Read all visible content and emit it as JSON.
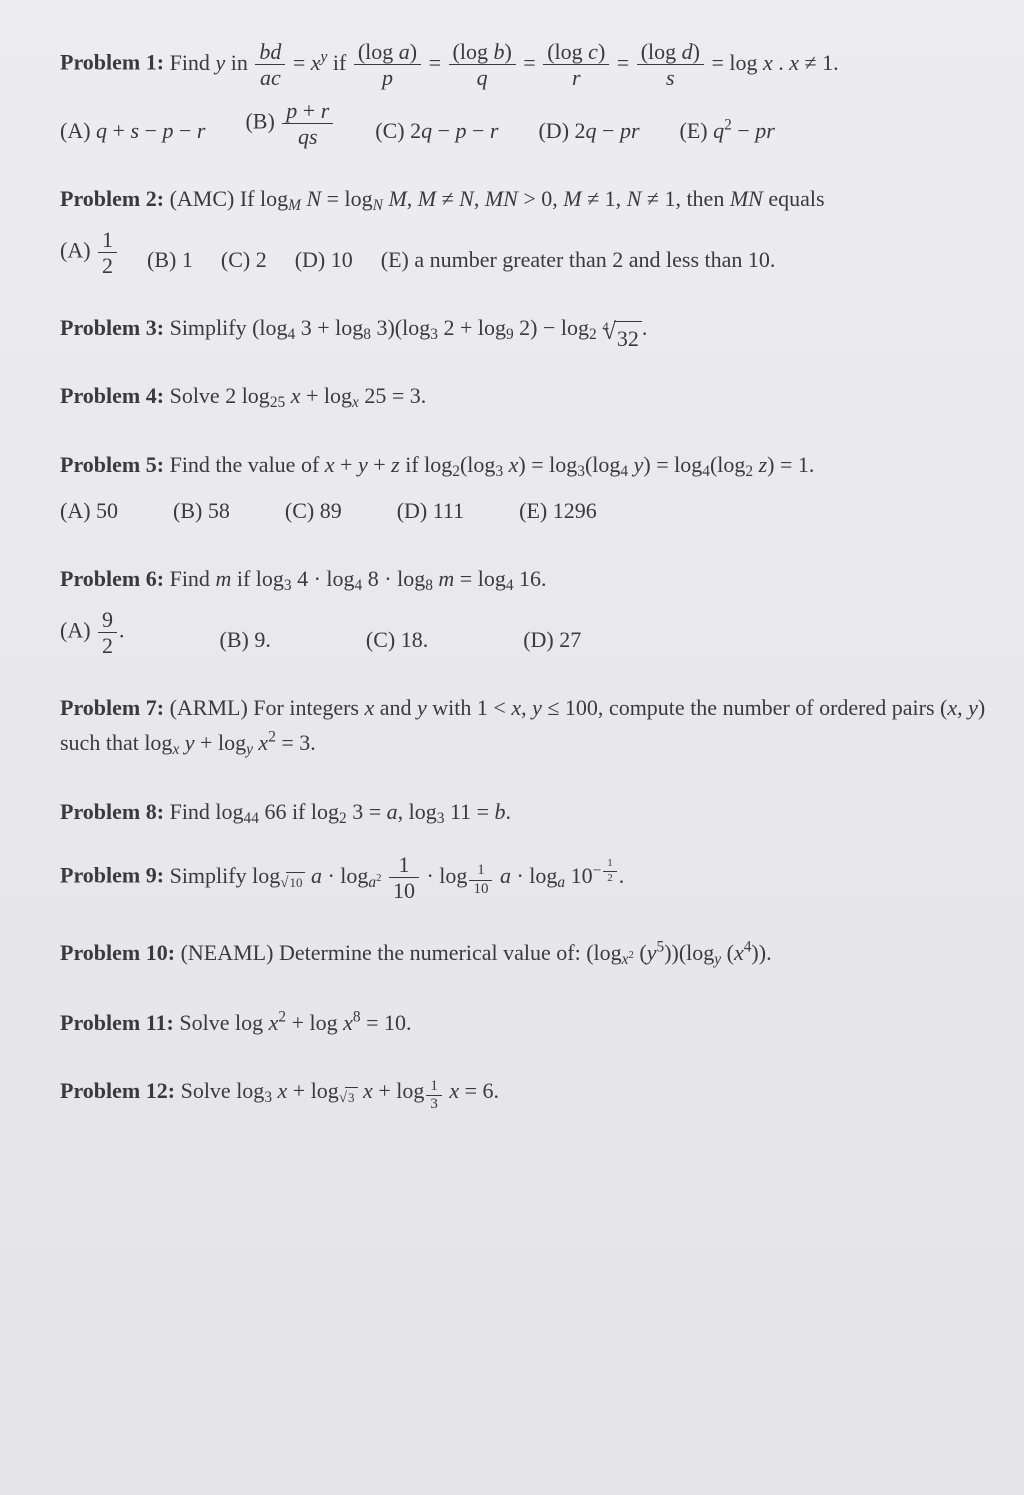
{
  "problems": [
    {
      "label": "Problem 1:",
      "statement_html": "Find <i>y</i> in <span class='frac'><span class='num'><i>bd</i></span><span class='den'><i>ac</i></span></span> = <i>x</i><sup><i>y</i></sup> if <span class='frac'><span class='num'>(log <i>a</i>)</span><span class='den'><i>p</i></span></span> = <span class='frac'><span class='num'>(log <i>b</i>)</span><span class='den'><i>q</i></span></span> = <span class='frac'><span class='num'>(log <i>c</i>)</span><span class='den'><i>r</i></span></span> = <span class='frac'><span class='num'>(log <i>d</i>)</span><span class='den'><i>s</i></span></span> = log <i>x</i> . <i>x</i> ≠ 1.",
      "choices": [
        "(A) <i>q</i> + <i>s</i> − <i>p</i> − <i>r</i>",
        "(B) <span class='frac'><span class='num'><i>p</i> + <i>r</i></span><span class='den'><i>qs</i></span></span>",
        "(C) 2<i>q</i> − <i>p</i> − <i>r</i>",
        "(D) 2<i>q</i> − <i>pr</i>",
        "(E) <i>q</i><sup>2</sup> − <i>pr</i>"
      ]
    },
    {
      "label": "Problem 2:",
      "statement_html": "(AMC) If log<span class='sub2'><i>M</i></span> <i>N</i> = log<span class='sub2'><i>N</i></span> <i>M</i>, <i>M</i> ≠ <i>N</i>, <i>MN</i> &gt; 0, <i>M</i> ≠ 1, <i>N</i> ≠ 1, then <i>MN</i> equals",
      "choices": [
        "(A) <span class='frac'><span class='num'>1</span><span class='den'>2</span></span>",
        "(B) 1",
        "(C) 2",
        "(D) 10",
        "(E) a number greater than 2 and less than 10."
      ]
    },
    {
      "label": "Problem 3:",
      "statement_html": "Simplify (log<span class='sub2'>4</span> 3 + log<span class='sub2'>8</span> 3)(log<span class='sub2'>3</span> 2 + log<span class='sub2'>9</span> 2) − log<span class='sub2'>2</span> <span class='radic'><span class='root-idx'>4</span><span class='surd'>√</span><span class='radicand'>32</span></span>.",
      "choices": []
    },
    {
      "label": "Problem 4:",
      "statement_html": "Solve 2 log<span class='sub2'>25</span> <i>x</i> + log<span class='sub2'><i>x</i></span> 25 = 3.",
      "choices": []
    },
    {
      "label": "Problem 5:",
      "statement_html": "Find the value of <i>x</i> + <i>y</i> + <i>z</i> if log<span class='sub2'>2</span>(log<span class='sub2'>3</span> <i>x</i>) = log<span class='sub2'>3</span>(log<span class='sub2'>4</span> <i>y</i>) = log<span class='sub2'>4</span>(log<span class='sub2'>2</span> <i>z</i>) = 1.",
      "choices": [
        "(A) 50",
        "(B) 58",
        "(C) 89",
        "(D) 111",
        "(E) 1296"
      ]
    },
    {
      "label": "Problem 6:",
      "statement_html": "Find <i>m</i> if log<span class='sub2'>3</span> 4 · log<span class='sub2'>4</span> 8 · log<span class='sub2'>8</span> <i>m</i> = log<span class='sub2'>4</span> 16.",
      "choices": [
        "(A) <span class='frac'><span class='num'>9</span><span class='den'>2</span></span>.",
        "(B) 9.",
        "(C) 18.",
        "(D) 27"
      ]
    },
    {
      "label": "Problem 7:",
      "statement_html": "(ARML) For integers <i>x</i> and <i>y</i> with 1 &lt; <i>x</i>, <i>y</i> ≤ 100, compute the number of ordered pairs (<i>x</i>, <i>y</i>) such that log<span class='sub2'><i>x</i></span> <i>y</i> + log<span class='sub2'><i>y</i></span> <i>x</i><sup>2</sup> = 3.",
      "choices": []
    },
    {
      "label": "Problem 8:",
      "statement_html": "Find log<span class='sub2'>44</span> 66 if log<span class='sub2'>2</span> 3 = <i>a</i>, log<span class='sub2'>3</span> 11 = <i>b</i>.",
      "choices": []
    },
    {
      "label": "Problem 9:",
      "statement_html": "Simplify log<span class='sub2'><span class='radic'><span class='surd' style='font-size:15px'>√</span><span class='radicand' style='border-top-width:1px;font-size:13px;'>10</span></span></span> <i>a</i> · log<span class='sub2'><i>a</i><sup>2</sup></span> <span class='frac'><span class='num'>1</span><span class='den'>10</span></span> · log<span class='sub2'><span class='frac small'><span class='num'>1</span><span class='den'>10</span></span></span> <i>a</i> · log<span class='sub2'><i>a</i></span> 10<sup>−<span class='frac small' style='font-size:11px;'><span class='num'>1</span><span class='den'>2</span></span></sup>.",
      "choices": []
    },
    {
      "label": "Problem 10:",
      "statement_html": "(NEAML) Determine the numerical value of: (log<span class='sub2'><i>x</i><sup>2</sup></span> (<i>y</i><sup>5</sup>))(log<span class='sub2'><i>y</i></span> (<i>x</i><sup>4</sup>)).",
      "choices": []
    },
    {
      "label": "Problem 11:",
      "statement_html": "Solve log <i>x</i><sup>2</sup> + log <i>x</i><sup>8</sup> = 10.",
      "choices": []
    },
    {
      "label": "Problem 12:",
      "statement_html": "Solve log<span class='sub2'>3</span> <i>x</i> + log<span class='sub2'><span class='radic'><span class='surd' style='font-size:15px'>√</span><span class='radicand' style='border-top-width:1px;font-size:13px;'>3</span></span></span> <i>x</i> + log<span class='sub2'><span class='frac small'><span class='num'>1</span><span class='den'>3</span></span></span> <i>x</i> = 6.",
      "choices": []
    }
  ]
}
